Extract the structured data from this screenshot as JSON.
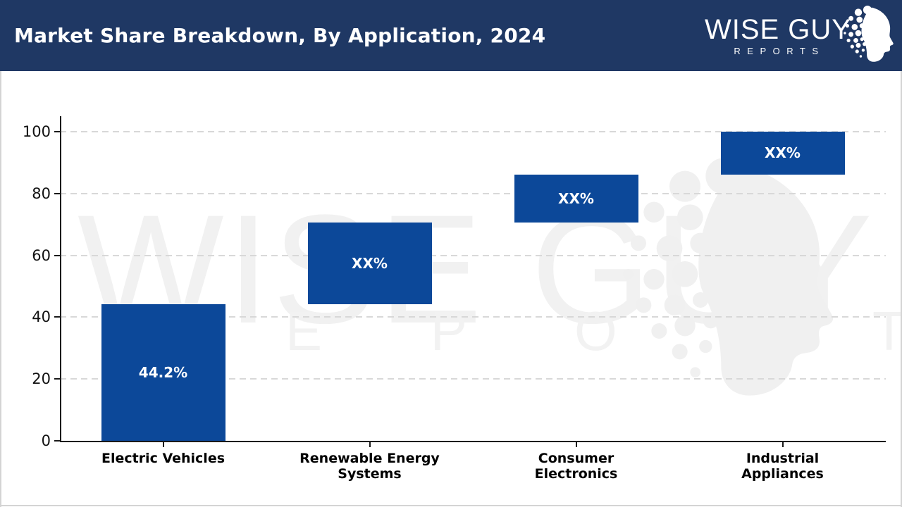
{
  "header": {
    "title": "Market Share Breakdown, By Application, 2024",
    "bg_color": "#1f3864",
    "brand": {
      "line1": "WISE GUY",
      "line2": "REPORTS"
    }
  },
  "watermark": {
    "line1": "WISE GUY",
    "line2": "REPORTS"
  },
  "chart_data": {
    "type": "bar",
    "subtype": "floating-waterfall",
    "title": "Market Share Breakdown, By Application, 2024",
    "categories": [
      "Electric Vehicles",
      "Renewable Energy\nSystems",
      "Consumer\nElectronics",
      "Industrial\nAppliances"
    ],
    "segments": [
      {
        "category": "Electric Vehicles",
        "start": 0,
        "end": 44.2,
        "label": "44.2%"
      },
      {
        "category": "Renewable Energy Systems",
        "start": 44.2,
        "end": 70.6,
        "label": "XX%"
      },
      {
        "category": "Consumer Electronics",
        "start": 70.6,
        "end": 86.2,
        "label": "XX%"
      },
      {
        "category": "Industrial Appliances",
        "start": 86.2,
        "end": 100,
        "label": "XX%"
      }
    ],
    "yticks": [
      0,
      20,
      40,
      60,
      80,
      100
    ],
    "ylim": [
      0,
      105
    ],
    "xlabel": "",
    "ylabel": "",
    "legend": "none",
    "grid": "horizontal-dashed",
    "bar_color": "#0c4899",
    "gridline_color": "#d8d8d8",
    "value_label_color": "#ffffff"
  }
}
